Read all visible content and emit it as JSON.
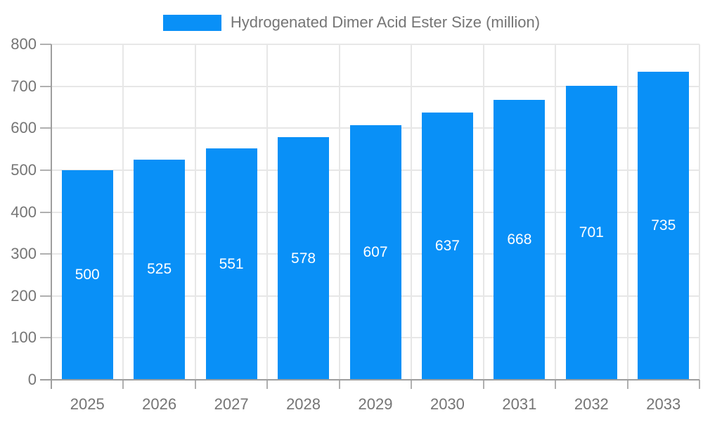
{
  "legend": {
    "label": "Hydrogenated Dimer Acid Ester Size (million)"
  },
  "colors": {
    "bar": "#0990f7",
    "axis_line": "#9e9e9e",
    "tick_mark": "#b0b0b0",
    "grid_line": "#e7e7e7",
    "axis_text": "#757575",
    "value_text": "#ffffff",
    "background": "#ffffff"
  },
  "chart_data": {
    "type": "bar",
    "title": "Hydrogenated Dimer Acid Ester Size (million)",
    "categories": [
      "2025",
      "2026",
      "2027",
      "2028",
      "2029",
      "2030",
      "2031",
      "2032",
      "2033"
    ],
    "series": [
      {
        "name": "Hydrogenated Dimer Acid Ester Size (million)",
        "values": [
          500,
          525,
          551,
          578,
          607,
          637,
          668,
          701,
          735
        ]
      }
    ],
    "xlabel": "",
    "ylabel": "",
    "ylim": [
      0,
      800
    ],
    "ytick_interval": 100,
    "ytick_labels": [
      "0",
      "100",
      "200",
      "300",
      "400",
      "500",
      "600",
      "700",
      "800"
    ],
    "grid": true,
    "legend_position": "top-center",
    "value_labels": "inside-middle"
  }
}
